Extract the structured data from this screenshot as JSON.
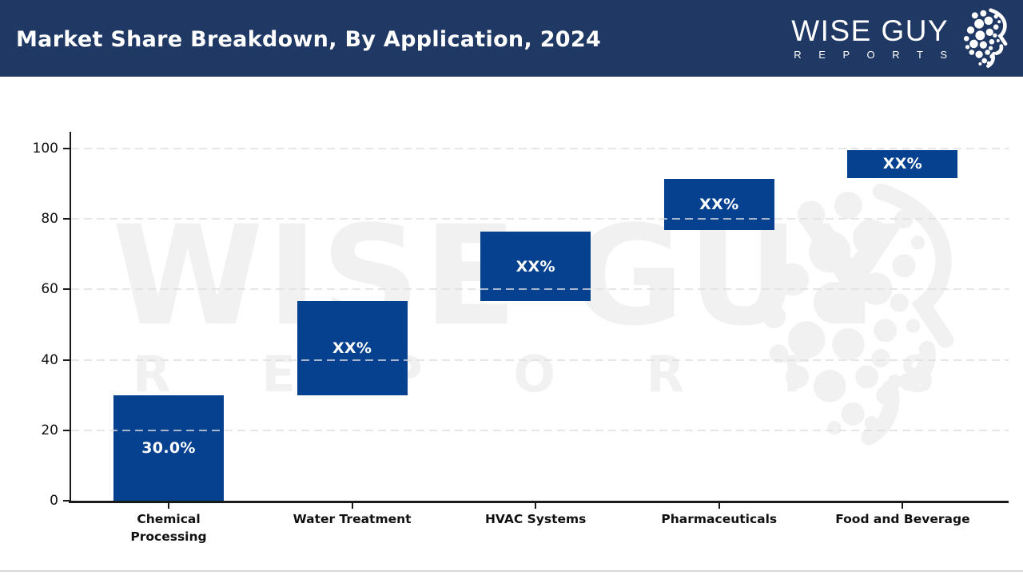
{
  "header": {
    "title": "Market Share Breakdown, By Application, 2024",
    "bg_color": "#1f3864",
    "logo": {
      "name": "WISE GUY",
      "tagline": "R E P O R T S"
    }
  },
  "watermark": {
    "line1": "WISE GUY",
    "line2": "R E P O R T S"
  },
  "chart_data": {
    "type": "bar",
    "variant": "waterfall",
    "title": "Market Share Breakdown, By Application, 2024",
    "categories": [
      "Chemical Processing",
      "Water Treatment",
      "HVAC Systems",
      "Pharmaceuticals",
      "Food and Beverage"
    ],
    "xticklabels": [
      "Chemical\nProcessing",
      "Water Treatment",
      "HVAC Systems",
      "Pharmaceuticals",
      "Food and Beverage"
    ],
    "segments": [
      {
        "category": "Chemical Processing",
        "start": 0,
        "end": 30,
        "label": "30.0%"
      },
      {
        "category": "Water Treatment",
        "start": 30,
        "end": 56.7,
        "label": "XX%"
      },
      {
        "category": "HVAC Systems",
        "start": 56.7,
        "end": 76.4,
        "label": "XX%"
      },
      {
        "category": "Pharmaceuticals",
        "start": 76.9,
        "end": 91.4,
        "label": "XX%"
      },
      {
        "category": "Food and Beverage",
        "start": 91.6,
        "end": 99.6,
        "label": "XX%"
      }
    ],
    "ylim": [
      0,
      100
    ],
    "yticks": [
      0,
      20,
      40,
      60,
      80,
      100
    ],
    "grid": "horizontal-dashed",
    "legend": "none",
    "bar_color": "#05418f",
    "value_label_color": "#ffffff",
    "axis_color": "#1a1a1a",
    "gridline_color": "#e3e3e3"
  }
}
